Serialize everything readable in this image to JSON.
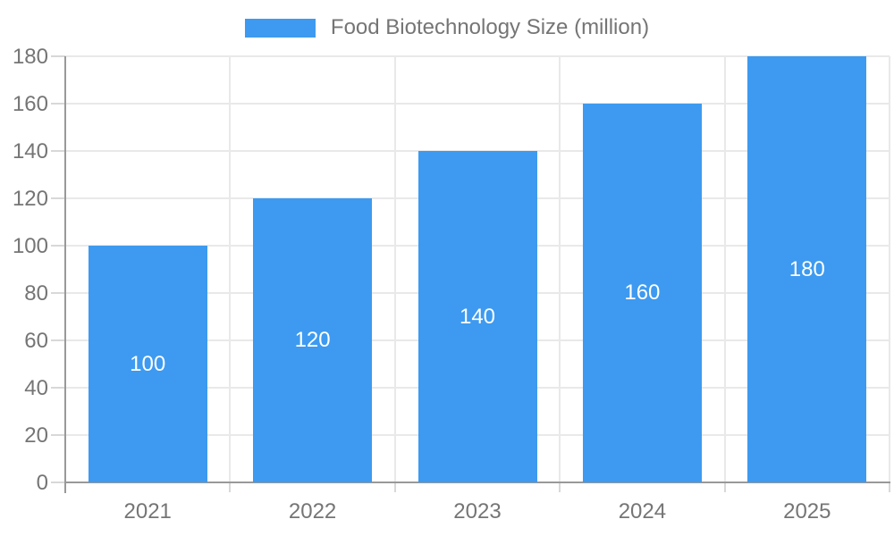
{
  "legend": {
    "label": "Food Biotechnology Size (million)"
  },
  "colors": {
    "bar": "#3D9AF0",
    "axis_line": "#999999",
    "grid": "#E9E9E9",
    "tick": "#D8D8D8",
    "text": "#757575",
    "value_label": "#FFFFFF",
    "background": "#FFFFFF"
  },
  "chart_data": {
    "type": "bar",
    "title": "Food Biotechnology Size (million)",
    "categories": [
      "2021",
      "2022",
      "2023",
      "2024",
      "2025"
    ],
    "values": [
      100,
      120,
      140,
      160,
      180
    ],
    "series": [
      {
        "name": "Food Biotechnology Size (million)",
        "values": [
          100,
          120,
          140,
          160,
          180
        ]
      }
    ],
    "xlabel": "",
    "ylabel": "",
    "ylim": [
      0,
      180
    ],
    "yticks": [
      0,
      20,
      40,
      60,
      80,
      100,
      120,
      140,
      160,
      180
    ],
    "grid": true,
    "legend_position": "top-center",
    "value_labels": "inside-center-white"
  }
}
